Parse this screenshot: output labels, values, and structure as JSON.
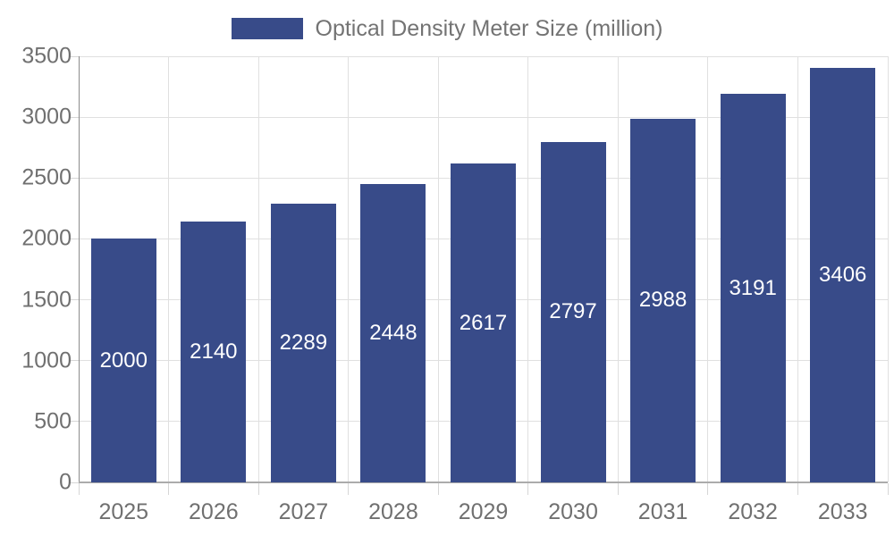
{
  "chart_data": {
    "type": "bar",
    "title": "Optical Density Meter Size (million)",
    "legend_entries": [
      "Optical Density Meter Size (million)"
    ],
    "legend_position": "top-center",
    "categories": [
      "2025",
      "2026",
      "2027",
      "2028",
      "2029",
      "2030",
      "2031",
      "2032",
      "2033"
    ],
    "values": [
      2000,
      2140,
      2289,
      2448,
      2617,
      2797,
      2988,
      3191,
      3406
    ],
    "value_labels_shown": true,
    "xlabel": "",
    "ylabel": "",
    "ylim": [
      0,
      3500
    ],
    "yticks": [
      0,
      500,
      1000,
      1500,
      2000,
      2500,
      3000,
      3500
    ],
    "grid": true,
    "colors": {
      "bar": "#384B89",
      "value_label": "#FFFFFF",
      "axis_label": "#707070",
      "legend_text": "#737373",
      "gridline": "#E0E0E0",
      "axis_line": "#8C8C8C",
      "baseline": "#ABABAB",
      "tick": "#D6D6D6"
    }
  }
}
